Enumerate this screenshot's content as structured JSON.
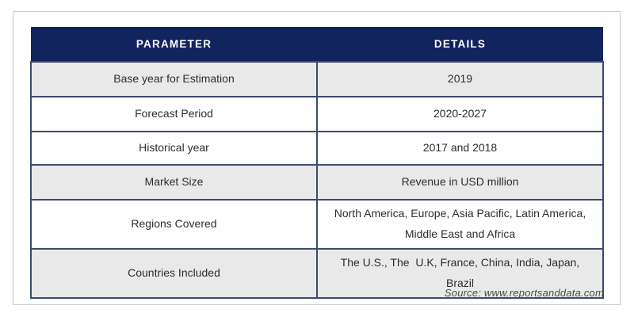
{
  "chart_data": {
    "type": "table",
    "columns": [
      "PARAMETER",
      "DETAILS"
    ],
    "rows": [
      {
        "parameter": "Base year for Estimation",
        "details": "2019"
      },
      {
        "parameter": "Forecast Period",
        "details": "2020-2027"
      },
      {
        "parameter": "Historical year",
        "details": "2017 and 2018"
      },
      {
        "parameter": "Market Size",
        "details": "Revenue in USD million"
      },
      {
        "parameter": "Regions Covered",
        "details": "North America, Europe, Asia Pacific, Latin America, Middle East and Africa"
      },
      {
        "parameter": "Countries Included",
        "details": "The U.S., The  U.K, France, China, India, Japan, Brazil"
      }
    ],
    "layout_hints": {
      "header_bg": "#12245e",
      "alt_row_bg": "#e9e9e9",
      "border_color": "#3c4a6e",
      "gray_row_indexes": [
        0,
        3,
        5
      ]
    }
  },
  "source": {
    "text": "Source: www.reportsanddata.com"
  }
}
